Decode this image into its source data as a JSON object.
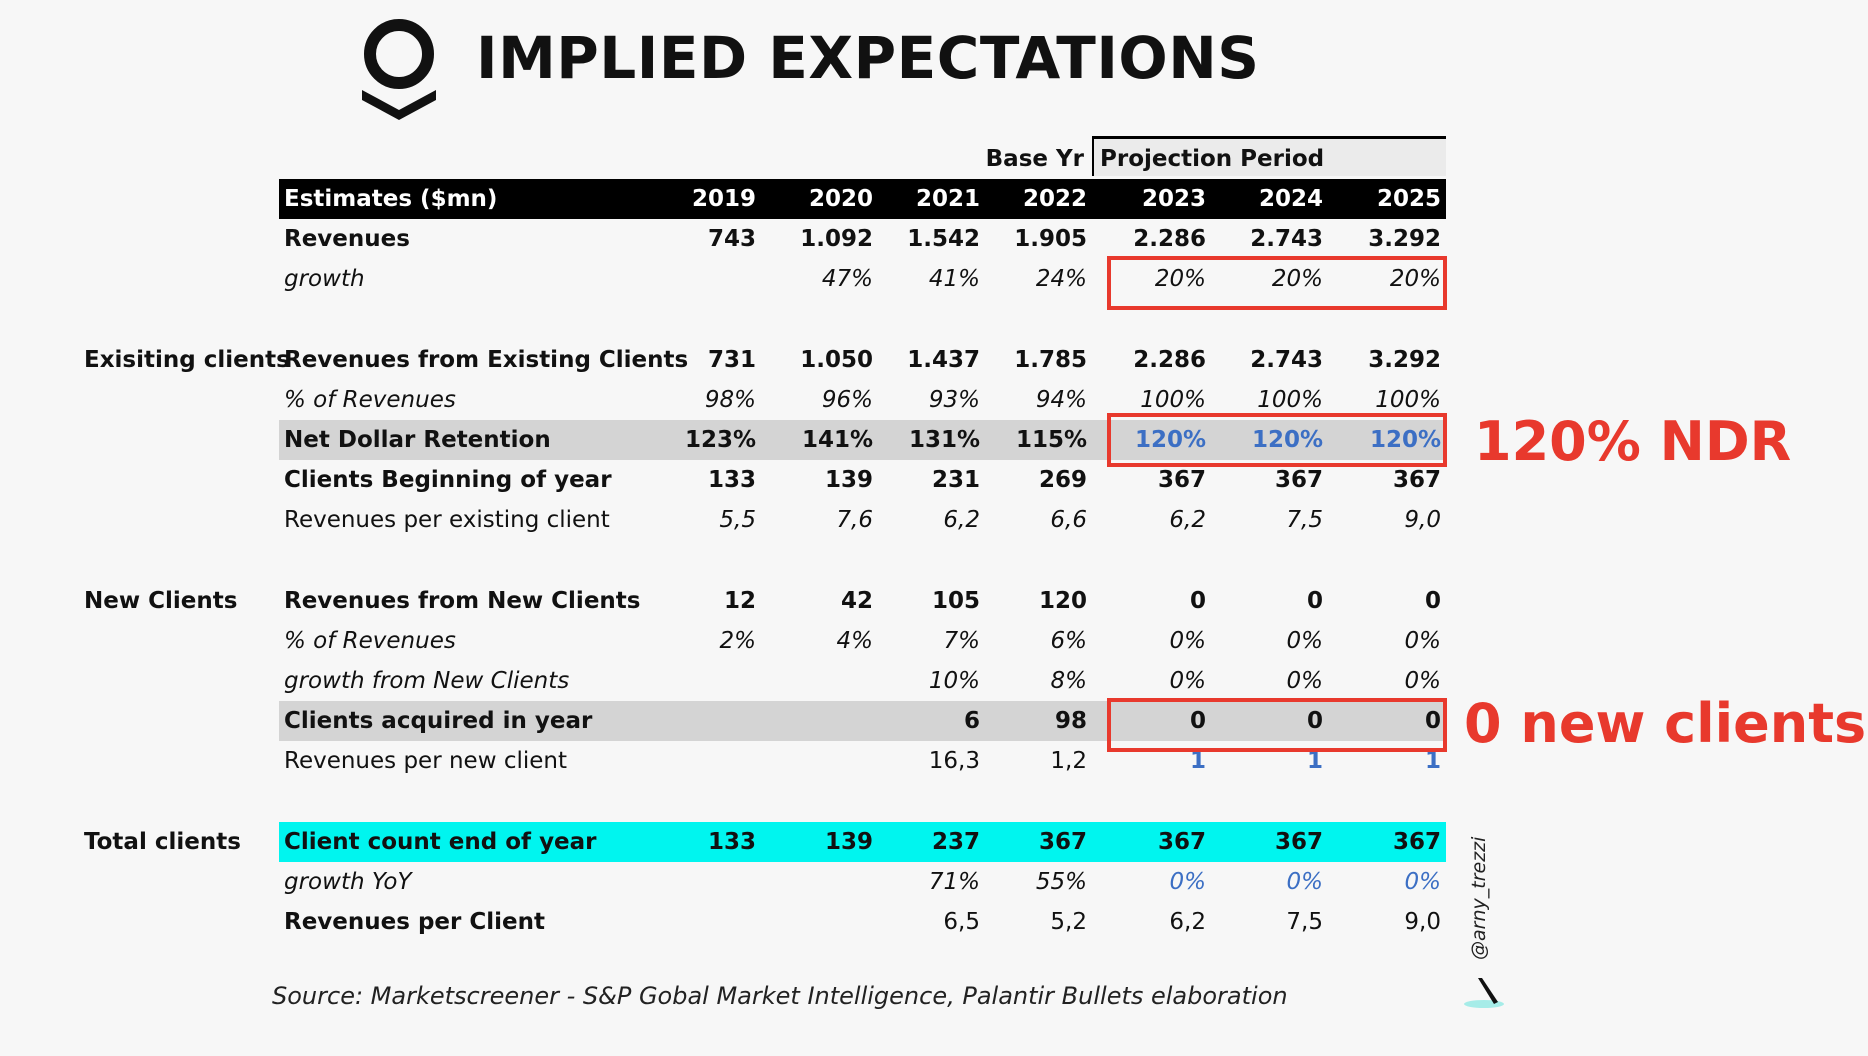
{
  "title": "IMPLIED EXPECTATIONS",
  "header": {
    "base_year_label": "Base Yr",
    "projection_label": "Projection Period",
    "estimates_label": "Estimates ($mn)",
    "years": [
      "2019",
      "2020",
      "2021",
      "2022",
      "2023",
      "2024",
      "2025"
    ]
  },
  "rows": {
    "revenues": {
      "label": "Revenues",
      "values": [
        "743",
        "1.092",
        "1.542",
        "1.905",
        "2.286",
        "2.743",
        "3.292"
      ]
    },
    "growth": {
      "label": "growth",
      "values": [
        "",
        "47%",
        "41%",
        "24%",
        "20%",
        "20%",
        "20%"
      ]
    },
    "rev_existing": {
      "label": "Revenues from Existing Clients",
      "values": [
        "731",
        "1.050",
        "1.437",
        "1.785",
        "2.286",
        "2.743",
        "3.292"
      ]
    },
    "pct_rev_existing": {
      "label": "% of Revenues",
      "values": [
        "98%",
        "96%",
        "93%",
        "94%",
        "100%",
        "100%",
        "100%"
      ]
    },
    "ndr": {
      "label": "Net Dollar Retention",
      "values": [
        "123%",
        "141%",
        "131%",
        "115%",
        "120%",
        "120%",
        "120%"
      ]
    },
    "clients_begin": {
      "label": "Clients Beginning of year",
      "values": [
        "133",
        "139",
        "231",
        "269",
        "367",
        "367",
        "367"
      ]
    },
    "rev_per_existing": {
      "label": "Revenues per existing client",
      "values": [
        "5,5",
        "7,6",
        "6,2",
        "6,6",
        "6,2",
        "7,5",
        "9,0"
      ]
    },
    "rev_new": {
      "label": "Revenues from New Clients",
      "values": [
        "12",
        "42",
        "105",
        "120",
        "0",
        "0",
        "0"
      ]
    },
    "pct_rev_new": {
      "label": "% of Revenues",
      "values": [
        "2%",
        "4%",
        "7%",
        "6%",
        "0%",
        "0%",
        "0%"
      ]
    },
    "growth_new": {
      "label": "growth from New Clients",
      "values": [
        "",
        "",
        "10%",
        "8%",
        "0%",
        "0%",
        "0%"
      ]
    },
    "acquired": {
      "label": "Clients acquired in year",
      "values": [
        "",
        "",
        "6",
        "98",
        "0",
        "0",
        "0"
      ]
    },
    "rev_per_new": {
      "label": "Revenues per new client",
      "values": [
        "",
        "",
        "16,3",
        "1,2",
        "1",
        "1",
        "1"
      ]
    },
    "client_count": {
      "label": "Client count end of year",
      "values": [
        "133",
        "139",
        "237",
        "367",
        "367",
        "367",
        "367"
      ]
    },
    "growth_yoy": {
      "label": "growth YoY",
      "values": [
        "",
        "",
        "71%",
        "55%",
        "0%",
        "0%",
        "0%"
      ]
    },
    "rev_per_client": {
      "label": "Revenues per Client",
      "values": [
        "",
        "",
        "6,5",
        "5,2",
        "6,2",
        "7,5",
        "9,0"
      ]
    }
  },
  "sections": {
    "existing": "Exisiting clients",
    "new": "New Clients",
    "total": "Total clients"
  },
  "annotations": {
    "ndr": "120% NDR",
    "new_clients": "0 new clients"
  },
  "source": "Source: Marketscreener - S&P Gobal Market Intelligence, Palantir Bullets elaboration",
  "handle": "@arny_trezzi",
  "colors": {
    "accent_red": "#e8392d",
    "highlight_cyan": "#00f5ef",
    "projection_blue": "#3c6fc4",
    "band_grey": "#d4d4d4"
  }
}
